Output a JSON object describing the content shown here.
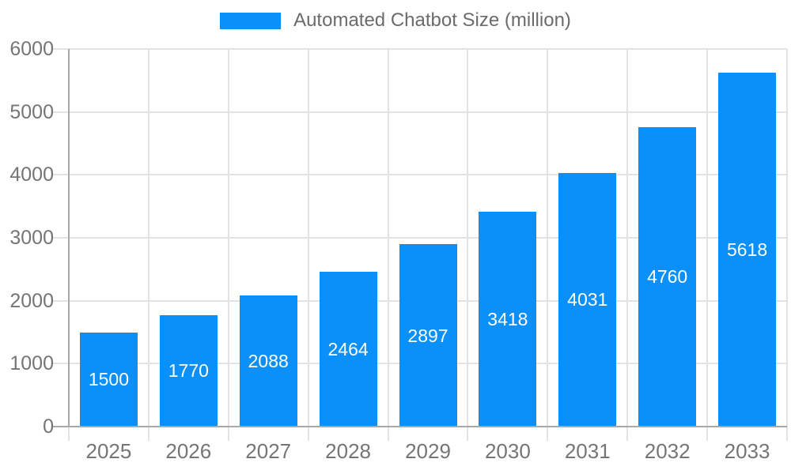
{
  "legend": {
    "label": "Automated Chatbot Size (million)"
  },
  "chart_data": {
    "type": "bar",
    "title": "",
    "categories": [
      "2025",
      "2026",
      "2027",
      "2028",
      "2029",
      "2030",
      "2031",
      "2032",
      "2033"
    ],
    "series": [
      {
        "name": "Automated Chatbot Size (million)",
        "values": [
          1500,
          1770,
          2088,
          2464,
          2897,
          3418,
          4031,
          4760,
          5618
        ]
      }
    ],
    "xlabel": "",
    "ylabel": "",
    "ylim": [
      0,
      6000
    ],
    "yticks": [
      0,
      1000,
      2000,
      3000,
      4000,
      5000,
      6000
    ],
    "grid": true,
    "legend_position": "top",
    "bar_value_labels": "inside-centered"
  },
  "colors": {
    "bar": "#0a90f8",
    "grid": "#e3e3e3",
    "axis": "#a8a8a8",
    "tick_label": "#757575",
    "legend_text": "#6b6b6b",
    "bar_label": "#ffffff",
    "background": "#ffffff"
  }
}
